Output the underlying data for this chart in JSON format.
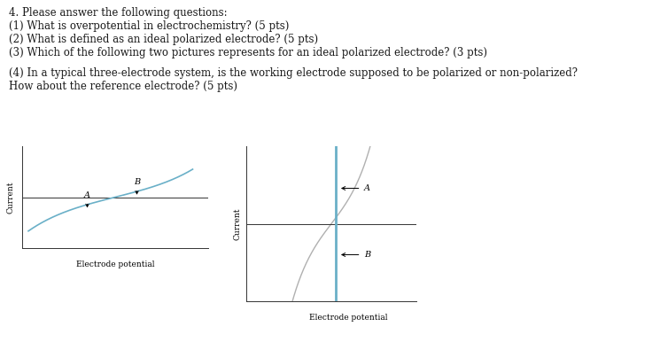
{
  "title_text": "4. Please answer the following questions:",
  "line1": "(1) What is overpotential in electrochemistry? (5 pts)",
  "line2": "(2) What is defined as an ideal polarized electrode? (5 pts)",
  "line3": "(3) Which of the following two pictures represents for an ideal polarized electrode? (3 pts)",
  "line4": "(4) In a typical three-electrode system, is the working electrode supposed to be polarized or non-polarized?",
  "line5": "How about the reference electrode? (5 pts)",
  "bg_color": "#ffffff",
  "text_color": "#1a1a1a",
  "axis_color": "#333333",
  "curve_color_left": "#6ab0c8",
  "curve_color_right": "#6ab0c8",
  "bg_curve_color": "#b0b0b0",
  "xlabel": "Electrode potential",
  "ylabel": "Current",
  "font_size_text": 8.5,
  "font_size_labels": 6.5,
  "font_size_AB": 7.0
}
